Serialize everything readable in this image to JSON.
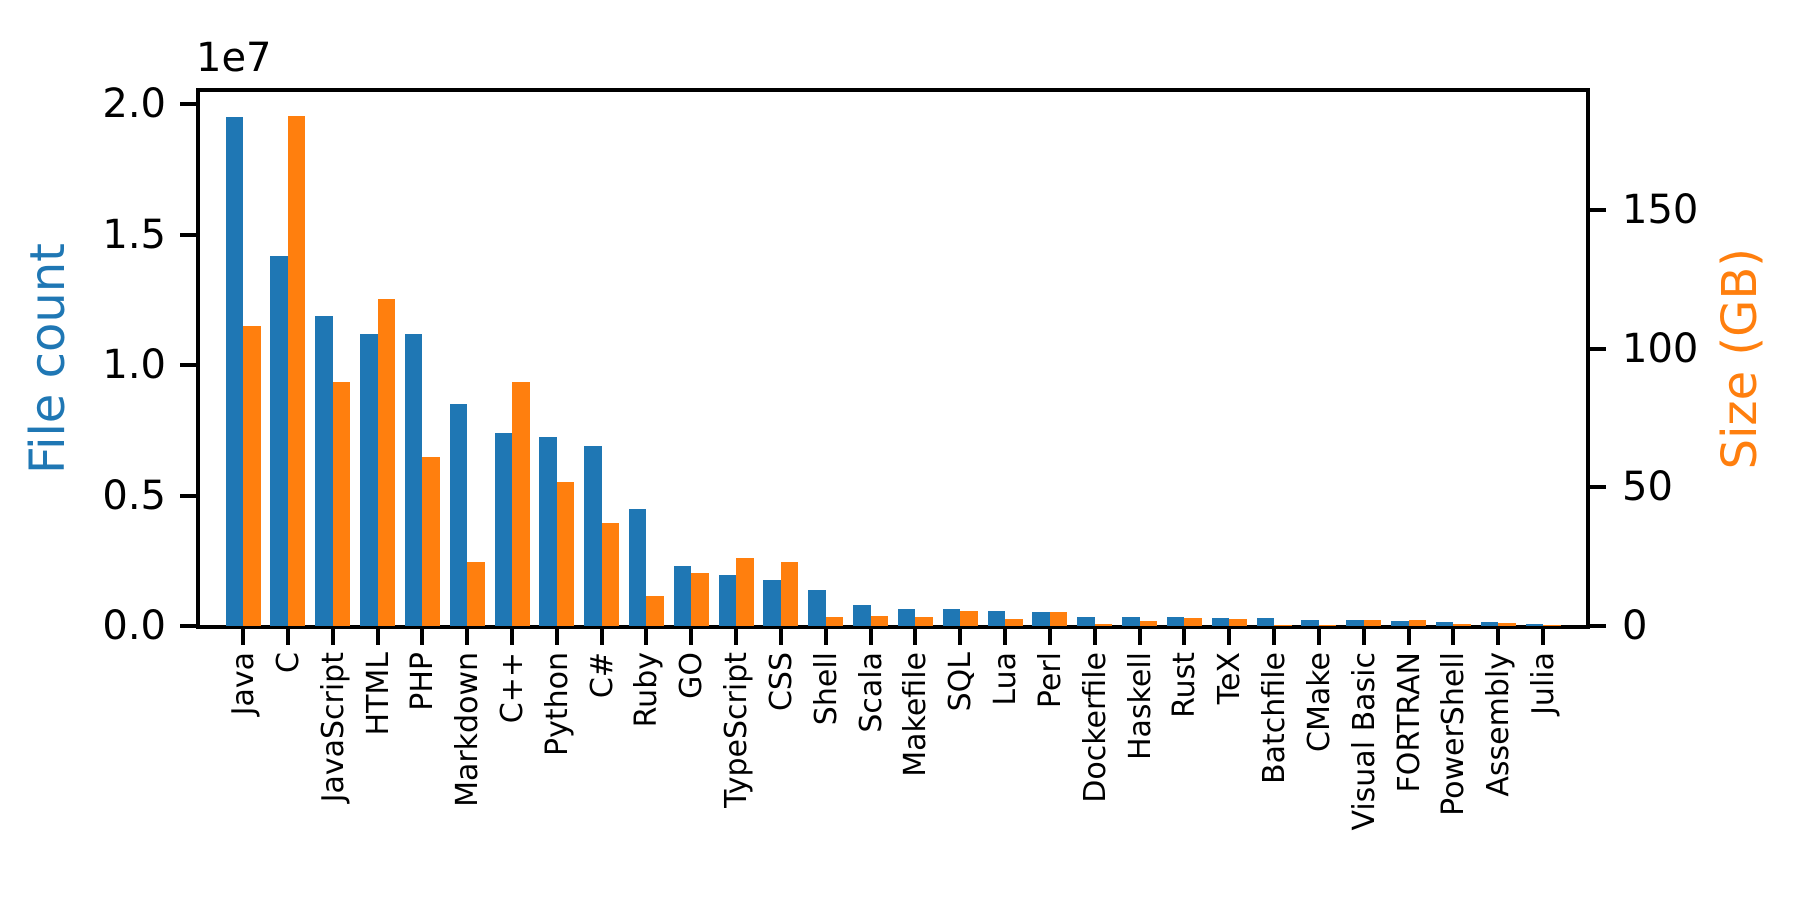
{
  "chart_data": {
    "type": "bar",
    "title": "",
    "grid": false,
    "legend": null,
    "categories": [
      "Java",
      "C",
      "JavaScript",
      "HTML",
      "PHP",
      "Markdown",
      "C++",
      "Python",
      "C#",
      "Ruby",
      "GO",
      "TypeScript",
      "CSS",
      "Shell",
      "Scala",
      "Makefile",
      "SQL",
      "Lua",
      "Perl",
      "Dockerfile",
      "Haskell",
      "Rust",
      "TeX",
      "Batchfile",
      "CMake",
      "Visual Basic",
      "FORTRAN",
      "PowerShell",
      "Assembly",
      "Julia"
    ],
    "series": [
      {
        "name": "File count",
        "axis": "left",
        "color": "#1f77b4",
        "values": [
          19500000,
          14200000,
          11900000,
          11200000,
          11200000,
          8500000,
          7400000,
          7250000,
          6900000,
          4500000,
          2300000,
          1950000,
          1750000,
          1400000,
          820000,
          670000,
          670000,
          590000,
          520000,
          360000,
          360000,
          360000,
          300000,
          290000,
          220000,
          220000,
          180000,
          160000,
          140000,
          80000
        ]
      },
      {
        "name": "Size (GB)",
        "axis": "right",
        "color": "#ff7f0e",
        "values": [
          108,
          184,
          88,
          118,
          61,
          23,
          88,
          52,
          37,
          11,
          19,
          24.5,
          23,
          3.1,
          3.8,
          3.1,
          5.6,
          2.7,
          4.9,
          0.9,
          2.0,
          2.9,
          2.7,
          0.4,
          0.4,
          2.3,
          2.2,
          0.7,
          1.2,
          0.3
        ]
      }
    ],
    "left_axis": {
      "label": "File count",
      "color": "#1f77b4",
      "offset_text": "1e7",
      "max": 20550000,
      "ticks": [
        {
          "label": "0.0",
          "value": 0
        },
        {
          "label": "0.5",
          "value": 5000000
        },
        {
          "label": "1.0",
          "value": 10000000
        },
        {
          "label": "1.5",
          "value": 15000000
        },
        {
          "label": "2.0",
          "value": 20000000
        }
      ]
    },
    "right_axis": {
      "label": "Size (GB)",
      "color": "#ff7f0e",
      "max": 193.2,
      "ticks": [
        {
          "label": "0",
          "value": 0
        },
        {
          "label": "50",
          "value": 50
        },
        {
          "label": "100",
          "value": 100
        },
        {
          "label": "150",
          "value": 150
        }
      ]
    }
  }
}
